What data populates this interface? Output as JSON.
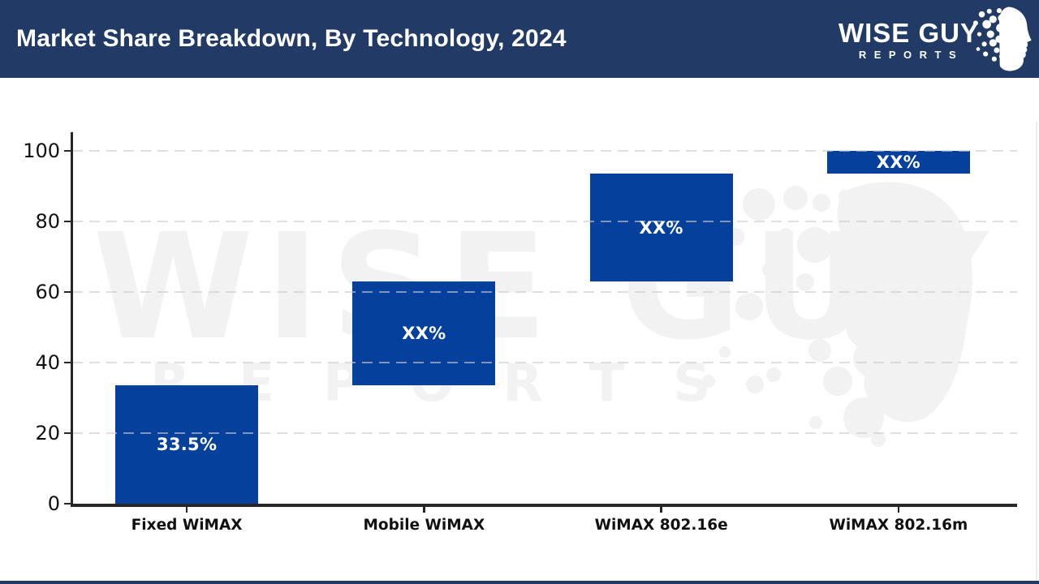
{
  "header": {
    "title": "Market Share Breakdown, By Technology, 2024"
  },
  "brand": {
    "name": "WISE GUY",
    "subtitle": "REPORTS",
    "face_icon": "dotted-face-profile-icon"
  },
  "watermark": {
    "line1": "WISE GUY",
    "line2": "REPORTS",
    "face_icon": "dotted-face-profile-watermark"
  },
  "colors": {
    "header_bg": "#223A66",
    "footer_bg": "#223A66",
    "title": "#FFFFFF",
    "bar": "#04409C",
    "bar_label": "#FFFFFF",
    "axis": "#262626",
    "grid": "#DCDCDC",
    "tick_label": "#111111",
    "category_label": "#111111",
    "watermark": "#F2F2F2"
  },
  "chart_data": {
    "type": "bar",
    "subtype": "floating-waterfall",
    "title": "Market Share Breakdown, By Technology, 2024",
    "categories": [
      "Fixed WiMAX",
      "Mobile WiMAX",
      "WiMAX 802.16e",
      "WiMAX 802.16m"
    ],
    "bars": [
      {
        "category": "Fixed WiMAX",
        "start": 0,
        "end": 33.5,
        "label": "33.5%"
      },
      {
        "category": "Mobile WiMAX",
        "start": 33.5,
        "end": 63,
        "label": "XX%"
      },
      {
        "category": "WiMAX 802.16e",
        "start": 63,
        "end": 93.5,
        "label": "XX%"
      },
      {
        "category": "WiMAX 802.16m",
        "start": 93.5,
        "end": 100,
        "label": "XX%"
      }
    ],
    "xlabel": "",
    "ylabel": "",
    "ylim": [
      0,
      100
    ],
    "yticks": [
      0,
      20,
      40,
      60,
      80,
      100
    ],
    "grid": "dashed-horizontal",
    "legend": "none",
    "bar_color": "#04409C"
  }
}
